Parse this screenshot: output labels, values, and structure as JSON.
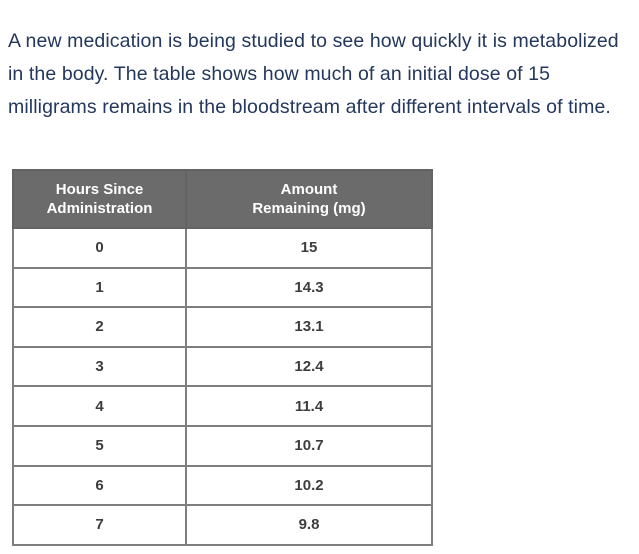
{
  "paragraph": "A new medication is being studied to see how quickly it is metabolized in the body. The table shows how much of an initial dose of 15 milligrams remains in the bloodstream after different intervals of time.",
  "table": {
    "headers": [
      {
        "line1": "Hours Since",
        "line2": "Administration",
        "full": "Hours Since Administration"
      },
      {
        "line1": "Amount",
        "line2": "Remaining (mg)",
        "full": "Amount Remaining (mg)"
      }
    ],
    "rows": [
      {
        "hours": "0",
        "amount": "15"
      },
      {
        "hours": "1",
        "amount": "14.3"
      },
      {
        "hours": "2",
        "amount": "13.1"
      },
      {
        "hours": "3",
        "amount": "12.4"
      },
      {
        "hours": "4",
        "amount": "11.4"
      },
      {
        "hours": "5",
        "amount": "10.7"
      },
      {
        "hours": "6",
        "amount": "10.2"
      },
      {
        "hours": "7",
        "amount": "9.8"
      }
    ]
  },
  "colors": {
    "paragraph_text": "#24375c",
    "header_bg": "#6b6b6b",
    "header_text": "#ffffff",
    "cell_text": "#3d3d3d",
    "border": "#7e7e7e"
  }
}
